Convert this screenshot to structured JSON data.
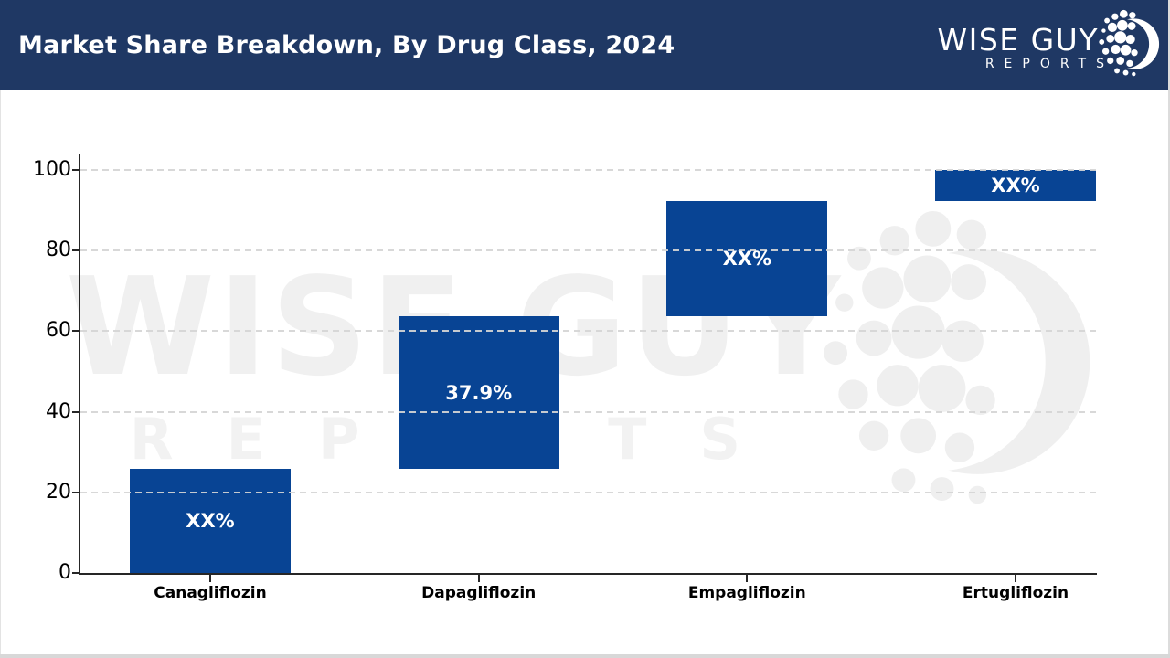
{
  "header": {
    "title": "Market Share Breakdown, By Drug Class, 2024",
    "bg_color": "#1f3864",
    "logo": {
      "line1": "WISE GUY",
      "line2": "REPORTS"
    }
  },
  "watermark": {
    "line1": "WISE GUY",
    "line2": "REPORTS"
  },
  "chart_data": {
    "type": "bar",
    "variant": "floating-waterfall",
    "title": "Market Share Breakdown, By Drug Class, 2024",
    "categories": [
      "Canagliflozin",
      "Dapagliflozin",
      "Empagliflozin",
      "Ertugliflozin"
    ],
    "segments": [
      {
        "category": "Canagliflozin",
        "start": 0,
        "end": 25.8,
        "label": "XX%"
      },
      {
        "category": "Dapagliflozin",
        "start": 25.8,
        "end": 63.7,
        "label": "37.9%"
      },
      {
        "category": "Empagliflozin",
        "start": 63.7,
        "end": 92.2,
        "label": "XX%"
      },
      {
        "category": "Ertugliflozin",
        "start": 92.2,
        "end": 100.1,
        "label": "XX%"
      }
    ],
    "xlabel": "",
    "ylabel": "",
    "yticks": [
      0,
      20,
      40,
      60,
      80,
      100
    ],
    "ylim": [
      0,
      105
    ],
    "grid": "horizontal-dashed-above-bars",
    "legend": "none",
    "bar_color": "#084494",
    "bar_label_color": "#ffffff",
    "grid_color": "#d5d5d5",
    "axis_color": "#262626"
  }
}
